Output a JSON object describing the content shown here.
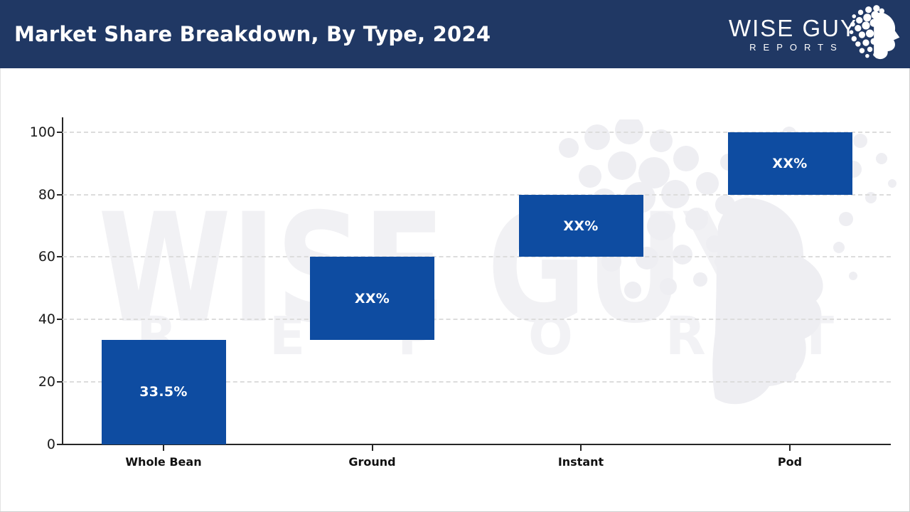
{
  "header": {
    "title": "Market Share Breakdown, By Type, 2024",
    "bg_color": "#203864",
    "logo": {
      "line1": "WISE GUY",
      "line2": "REPORTS"
    }
  },
  "watermark": {
    "line1": "WISE GUY",
    "line2": "R E P O R T S"
  },
  "chart_data": {
    "type": "bar",
    "subtype": "waterfall",
    "title": "Market Share Breakdown, By Type, 2024",
    "categories": [
      "Whole Bean",
      "Ground",
      "Instant",
      "Pod"
    ],
    "segments": [
      {
        "category": "Whole Bean",
        "start": 0,
        "end": 33.5,
        "label": "33.5%"
      },
      {
        "category": "Ground",
        "start": 33.5,
        "end": 60,
        "label": "XX%"
      },
      {
        "category": "Instant",
        "start": 60,
        "end": 80,
        "label": "XX%"
      },
      {
        "category": "Pod",
        "start": 80,
        "end": 100,
        "label": "XX%"
      }
    ],
    "yticks": [
      0,
      20,
      40,
      60,
      80,
      100
    ],
    "ylim": [
      0,
      105
    ],
    "xlabel": "",
    "ylabel": "",
    "grid": "horizontal-dashed",
    "legend": "none",
    "bar_color": "#0e4ca1",
    "bar_label_color": "#ffffff",
    "axis_color": "#262626",
    "grid_color": "#dcdcdc"
  }
}
